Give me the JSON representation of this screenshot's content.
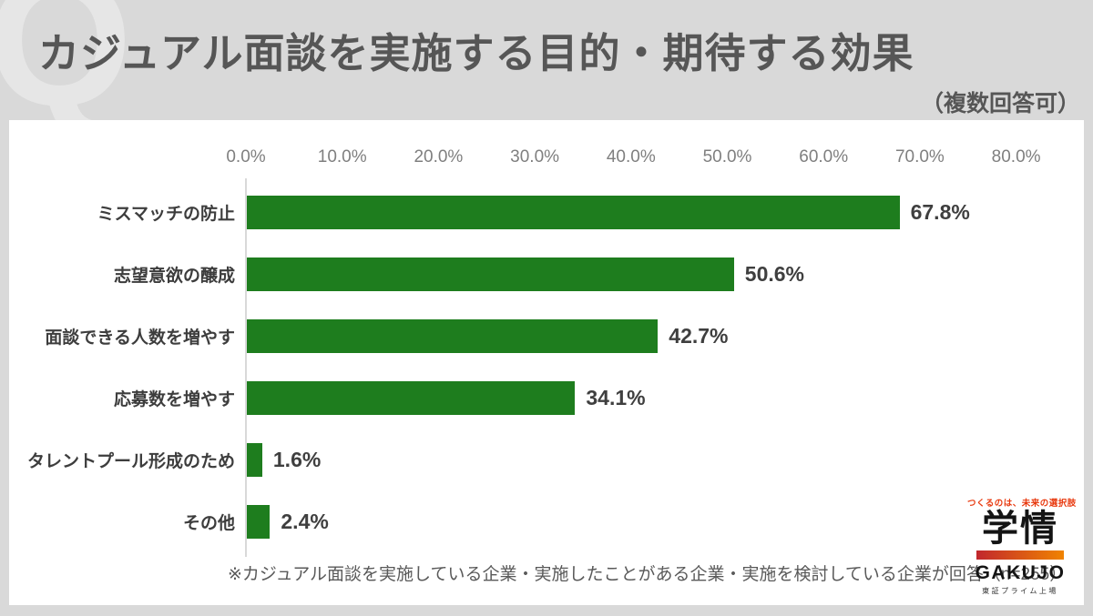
{
  "header": {
    "q_watermark": "Q",
    "title": "カジュアル面談を実施する目的・期待する効果",
    "note": "（複数回答可）"
  },
  "chart_data": {
    "type": "bar",
    "orientation": "horizontal",
    "title": "カジュアル面談を実施する目的・期待する効果",
    "categories": [
      "ミスマッチの防止",
      "志望意欲の醸成",
      "面談できる人数を増やす",
      "応募数を増やす",
      "タレントプール形成のため",
      "その他"
    ],
    "values": [
      67.8,
      50.6,
      42.7,
      34.1,
      1.6,
      2.4
    ],
    "value_labels": [
      "67.8%",
      "50.6%",
      "42.7%",
      "34.1%",
      "1.6%",
      "2.4%"
    ],
    "x_ticks": [
      "0.0%",
      "10.0%",
      "20.0%",
      "30.0%",
      "40.0%",
      "50.0%",
      "60.0%",
      "70.0%",
      "80.0%"
    ],
    "xlim": [
      0,
      80
    ],
    "grid": false,
    "legend": false,
    "bar_color": "#1e7d1e"
  },
  "footnote": "※カジュアル面談を実施している企業・実施したことがある企業・実施を検討している企業が回答（n=255）",
  "logo": {
    "tagline": "つくるのは、未来の選択肢",
    "name_kanji": "学情",
    "name_latin": "GAKUJO",
    "subtext": "東証プライム上場",
    "accent_red": "#e8380d",
    "gradient_from": "#c1272d",
    "gradient_to": "#f08300"
  }
}
